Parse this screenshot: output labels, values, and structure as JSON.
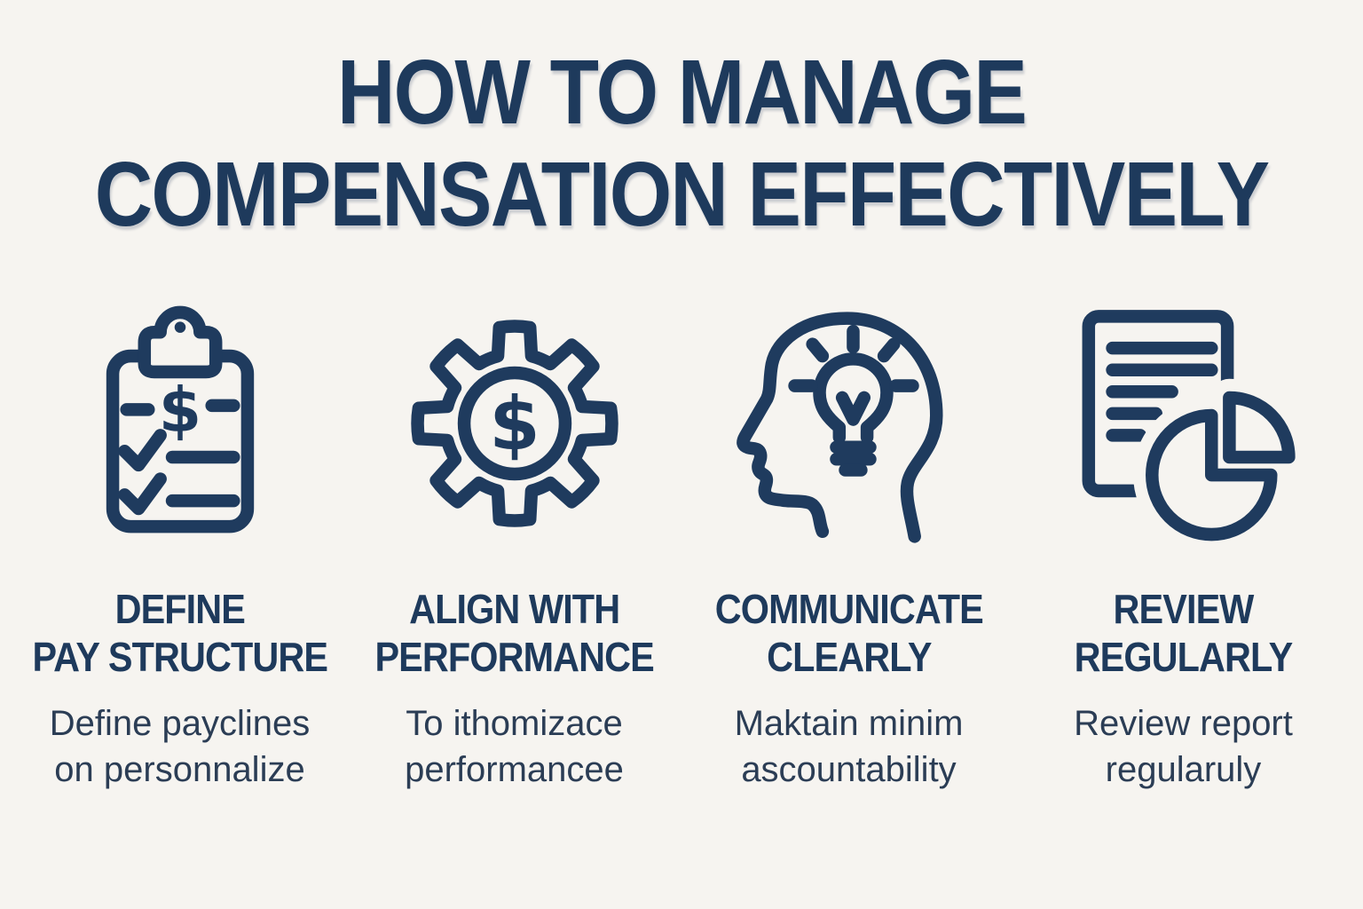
{
  "colors": {
    "navy": "#1f3b5e",
    "background": "#f6f4f0",
    "body_text": "#2b3d55"
  },
  "title": {
    "line1": "HOW TO MANAGE",
    "line2": "COMPENSATION EFFECTIVELY"
  },
  "columns": [
    {
      "icon": "clipboard-dollar-checklist-icon",
      "heading_line1": "DEFINE",
      "heading_line2": "PAY STRUCTURE",
      "desc_line1": "Define payclines",
      "desc_line2": "on personnalize"
    },
    {
      "icon": "gear-dollar-icon",
      "heading_line1": "ALIGN WITH",
      "heading_line2": "PERFORMANCE",
      "desc_line1": "To ithomizace",
      "desc_line2": "performancee"
    },
    {
      "icon": "head-lightbulb-icon",
      "heading_line1": "COMMUNICATE",
      "heading_line2": "CLEARLY",
      "desc_line1": "Maktain minim",
      "desc_line2": "ascountability"
    },
    {
      "icon": "document-pie-chart-icon",
      "heading_line1": "REVIEW",
      "heading_line2": "REGULARLY",
      "desc_line1": "Review report",
      "desc_line2": "regularuly"
    }
  ]
}
